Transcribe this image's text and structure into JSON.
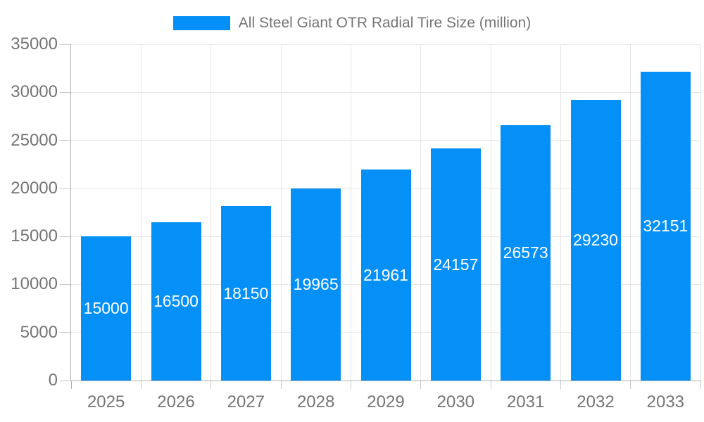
{
  "chart_data": {
    "type": "bar",
    "title": "All Steel Giant OTR Radial Tire Size (million)",
    "categories": [
      "2025",
      "2026",
      "2027",
      "2028",
      "2029",
      "2030",
      "2031",
      "2032",
      "2033"
    ],
    "values": [
      15000,
      16500,
      18150,
      19965,
      21961,
      24157,
      26573,
      29230,
      32151
    ],
    "xlabel": "",
    "ylabel": "",
    "ylim": [
      0,
      35000
    ],
    "ytick_step": 5000,
    "ytick_labels": [
      "0",
      "5000",
      "10000",
      "15000",
      "20000",
      "25000",
      "30000",
      "35000"
    ],
    "grid": true,
    "legend_position": "top-center",
    "data_labels": "inside-center-white",
    "colors": {
      "bar": "#0590f8",
      "bar_label": "#ffffff",
      "axis_text": "#757575",
      "gridline": "#e6e6e6",
      "axis_line": "#b0b0b0",
      "tick": "#c9c9c9",
      "background": "#ffffff"
    }
  }
}
